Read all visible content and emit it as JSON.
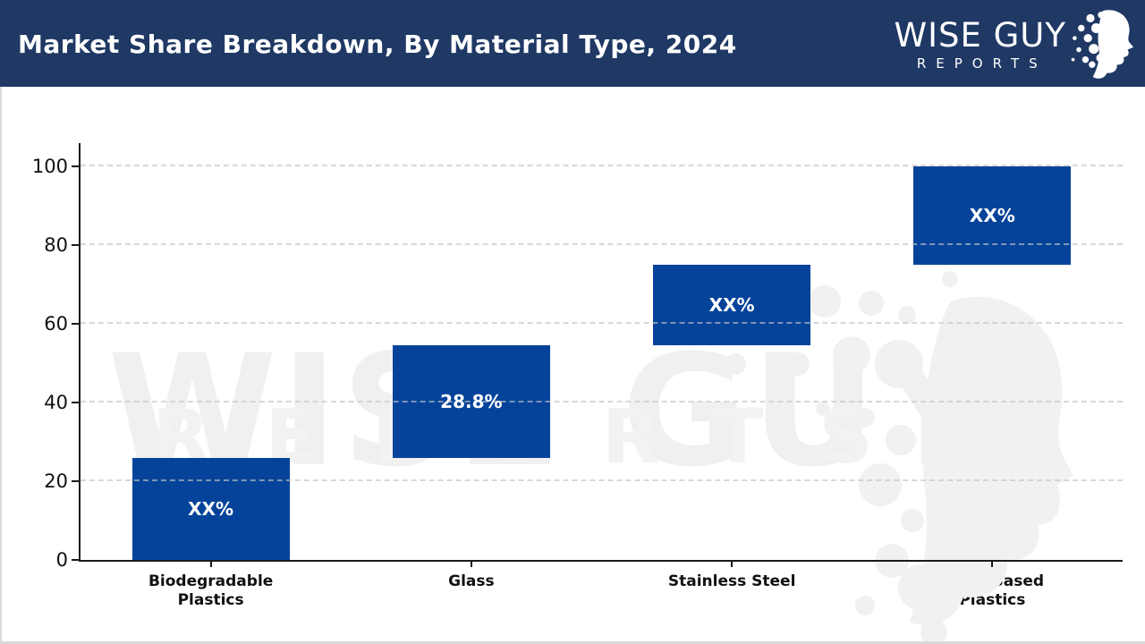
{
  "header": {
    "title": "Market Share Breakdown, By Material Type, 2024"
  },
  "logo": {
    "wordmark": "WISE GUY",
    "subtext": "REPORTS"
  },
  "watermark": {
    "wordmark": "WISE GUY",
    "subtext": "REPORTS"
  },
  "colors": {
    "header_bg": "#1f3864",
    "bar": "#05439b",
    "bar_label": "#ffffff",
    "grid": "#c8c8c8",
    "axis": "#1a1a1a",
    "watermark": "#f0f0f0"
  },
  "chart_data": {
    "type": "bar",
    "subtype": "waterfall",
    "title": "Market Share Breakdown, By Material Type, 2024",
    "xlabel": "",
    "ylabel": "",
    "categories": [
      "Biodegradable\nPlastics",
      "Glass",
      "Stainless Steel",
      "Plant-Based\nPlastics"
    ],
    "bars": [
      {
        "category": "Biodegradable Plastics",
        "start": 0,
        "end": 25.8,
        "label": "XX%"
      },
      {
        "category": "Glass",
        "start": 25.8,
        "end": 54.6,
        "label": "28.8%"
      },
      {
        "category": "Stainless Steel",
        "start": 54.6,
        "end": 75.0,
        "label": "XX%"
      },
      {
        "category": "Plant-Based Plastics",
        "start": 75.0,
        "end": 100.0,
        "label": "XX%"
      }
    ],
    "yticks": [
      0,
      20,
      40,
      60,
      80,
      100
    ],
    "ylim": [
      0,
      105
    ],
    "grid": "horizontal-dashed",
    "legend": "none"
  }
}
